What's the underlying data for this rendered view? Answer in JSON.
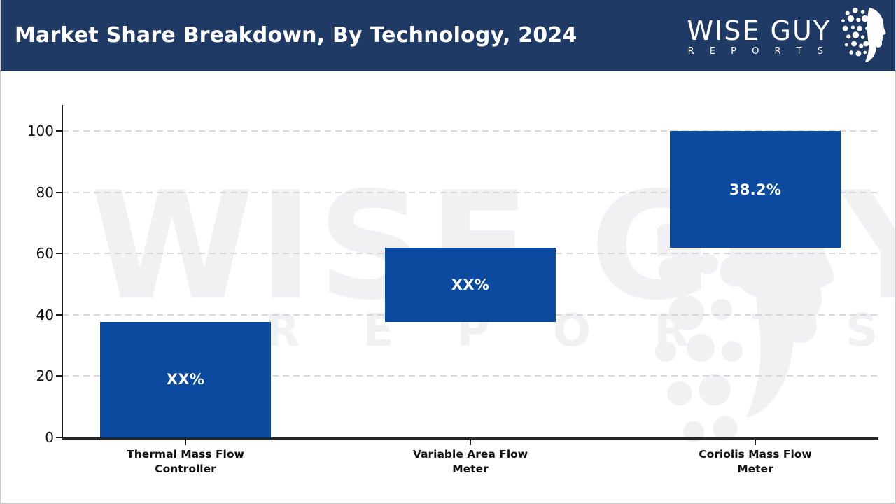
{
  "header": {
    "title": "Market Share Breakdown, By Technology, 2024",
    "logo": {
      "line1": "WISE GUY",
      "line2": "R E P O R T S"
    }
  },
  "watermark": {
    "line1": "WISE GUY",
    "line2": "R E P O R T S"
  },
  "colors": {
    "header_bg": "#203a66",
    "bar_fill": "#0b4a9e",
    "gridline": "#d9d9d9",
    "axis": "#1a1a1a",
    "bar_label": "#ffffff",
    "watermark": "#f1f1f4"
  },
  "chart_data": {
    "type": "bar",
    "subtype": "stacked-percentage-waterfall",
    "title": "Market Share Breakdown, By Technology, 2024",
    "categories": [
      "Thermal Mass Flow\nController",
      "Variable Area Flow\nMeter",
      "Coriolis Mass Flow\nMeter"
    ],
    "segments": [
      {
        "category": "Thermal Mass Flow Controller",
        "start": 0,
        "end": 37.7,
        "height": 37.7,
        "value_label": "XX%"
      },
      {
        "category": "Variable Area Flow Meter",
        "start": 37.7,
        "end": 61.8,
        "height": 24.1,
        "value_label": "XX%"
      },
      {
        "category": "Coriolis Mass Flow Meter",
        "start": 61.8,
        "end": 100,
        "height": 38.2,
        "value_label": "38.2%",
        "value": 38.2
      }
    ],
    "yticks": [
      0,
      20,
      40,
      60,
      80,
      100
    ],
    "ylim": [
      0,
      100
    ],
    "xlabel": "",
    "ylabel": "",
    "grid": "dashed-horizontal",
    "legend": "none"
  }
}
